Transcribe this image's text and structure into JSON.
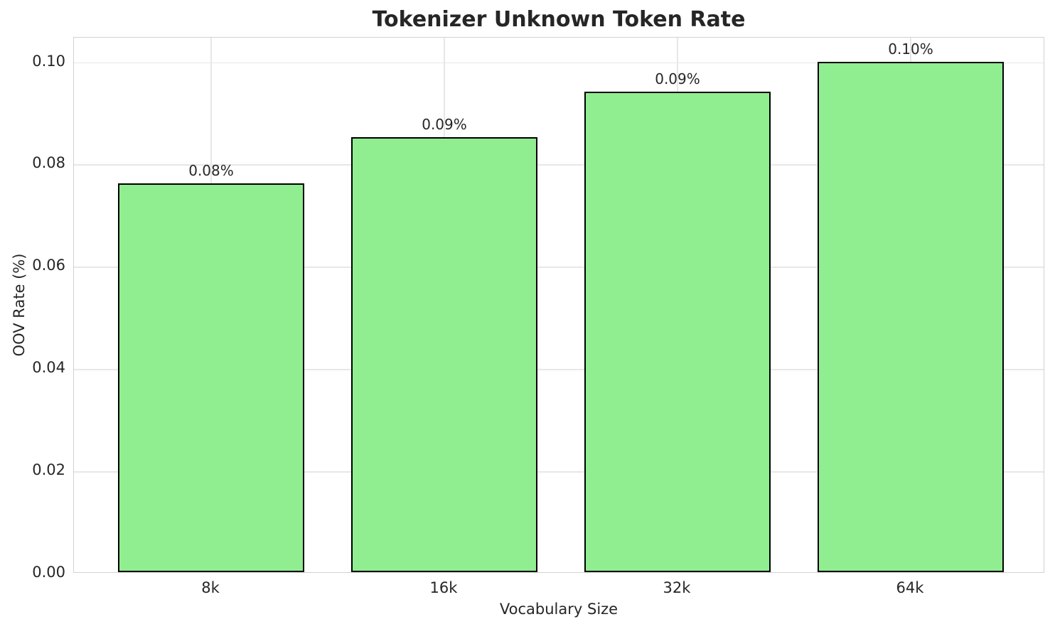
{
  "chart_data": {
    "type": "bar",
    "title": "Tokenizer Unknown Token Rate",
    "xlabel": "Vocabulary Size",
    "ylabel": "OOV Rate (%)",
    "categories": [
      "8k",
      "16k",
      "32k",
      "64k"
    ],
    "values": [
      0.076,
      0.085,
      0.094,
      0.0998
    ],
    "bar_labels": [
      "0.08%",
      "0.09%",
      "0.09%",
      "0.10%"
    ],
    "yticks": [
      {
        "label": "0.00",
        "value": 0.0
      },
      {
        "label": "0.02",
        "value": 0.02
      },
      {
        "label": "0.04",
        "value": 0.04
      },
      {
        "label": "0.06",
        "value": 0.06
      },
      {
        "label": "0.08",
        "value": 0.08
      },
      {
        "label": "0.10",
        "value": 0.1
      }
    ],
    "ylim": [
      0,
      0.1048
    ],
    "grid": true,
    "legend": "none",
    "bar_color": "#90EE90",
    "bar_edge_color": "#000000",
    "grid_color": "#e7e7e7",
    "background_color": "#ffffff",
    "text_color": "#262626"
  }
}
